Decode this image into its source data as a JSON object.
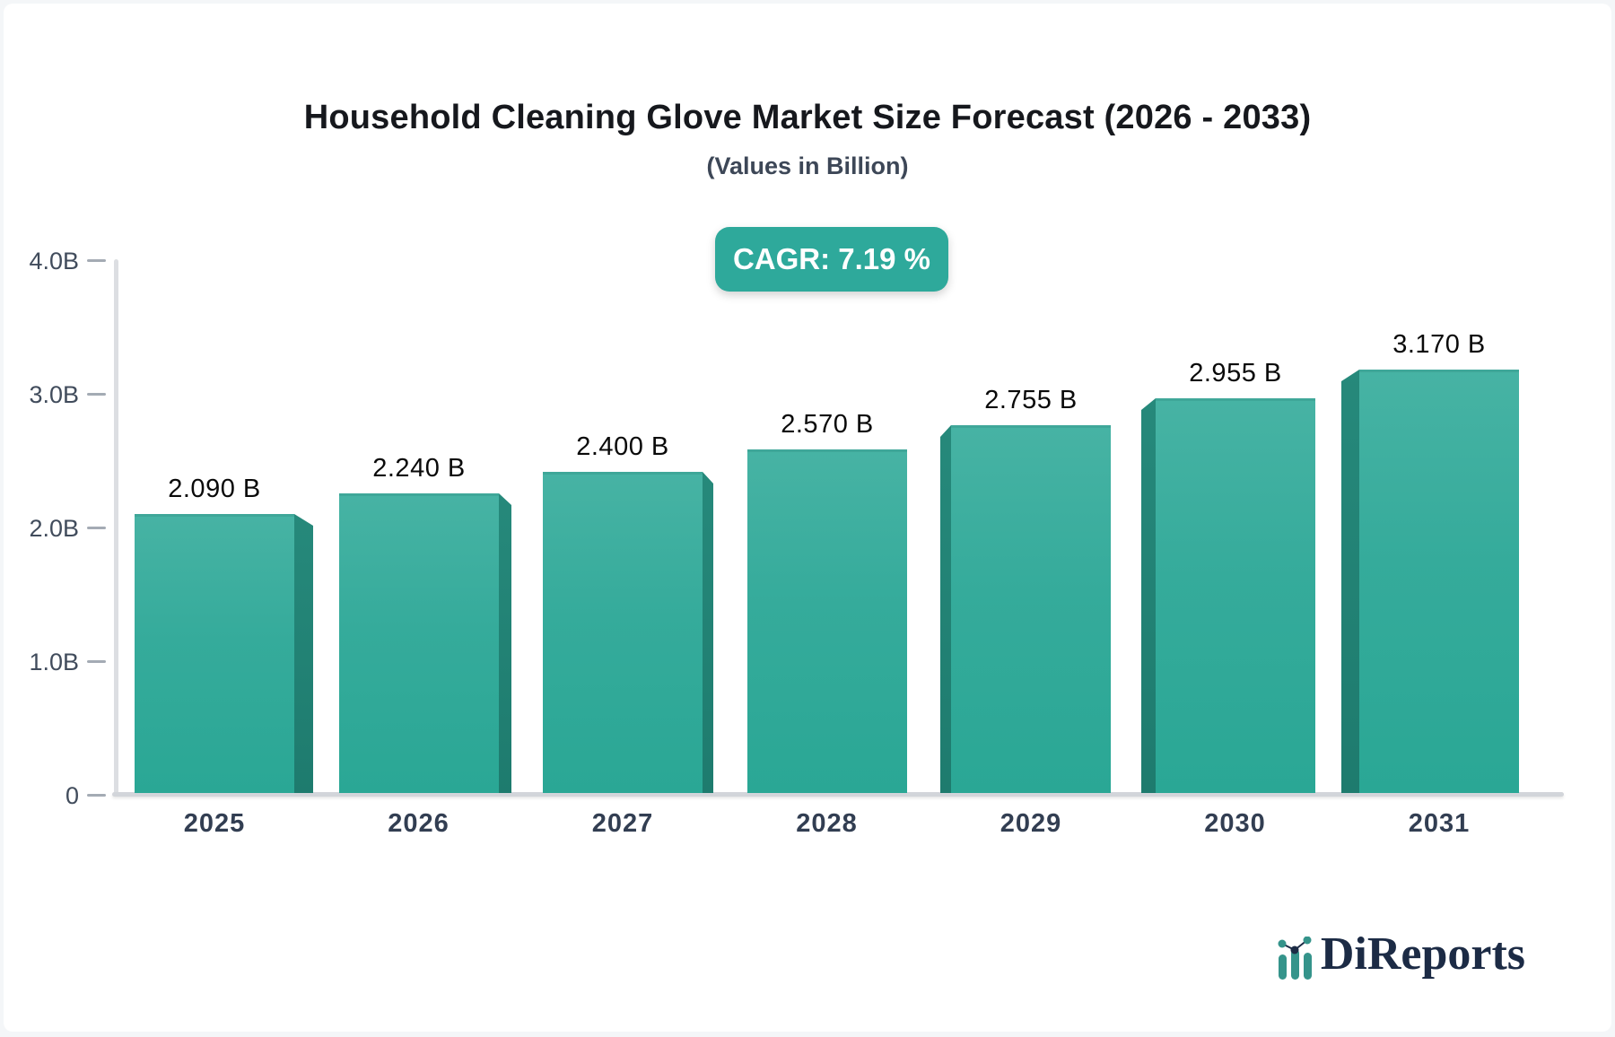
{
  "title": "Household Cleaning Glove Market Size Forecast (2026 - 2033)",
  "subtitle": "(Values in Billion)",
  "badge": {
    "label": "CAGR: 7.19 %"
  },
  "chart_data": {
    "type": "bar",
    "categories": [
      "2025",
      "2026",
      "2027",
      "2028",
      "2029",
      "2030",
      "2031"
    ],
    "values": [
      2.09,
      2.24,
      2.4,
      2.57,
      2.755,
      2.955,
      3.17
    ],
    "value_labels": [
      "2.090 B",
      "2.240 B",
      "2.400 B",
      "2.570 B",
      "2.755 B",
      "2.955 B",
      "3.170 B"
    ],
    "title": "Household Cleaning Glove Market Size Forecast (2026 - 2033)",
    "subtitle": "(Values in Billion)",
    "xlabel": "",
    "ylabel": "",
    "ylim": [
      0,
      4.0
    ],
    "yticks": [
      0,
      1,
      2,
      3,
      4
    ],
    "ytick_labels": [
      "0",
      "1.0B",
      "2.0B",
      "3.0B",
      "4.0B"
    ],
    "grid": false,
    "legend": false,
    "style": "3d-perspective-bars"
  },
  "colors": {
    "bar_face_top": "#47b3a4",
    "bar_face_bottom": "#2aa795",
    "bar_side": "#1f7e71",
    "badge_bg": "#2ea99b",
    "axis_line": "#d2d5da",
    "tick_text": "#414c5c",
    "category_text": "#323e52",
    "value_text": "#0a0a0a",
    "logo_navy": "#1c2b45",
    "logo_teal": "#35948b"
  },
  "logo": {
    "text": "DiReports",
    "icon": "mini-bar-chart-icon"
  }
}
